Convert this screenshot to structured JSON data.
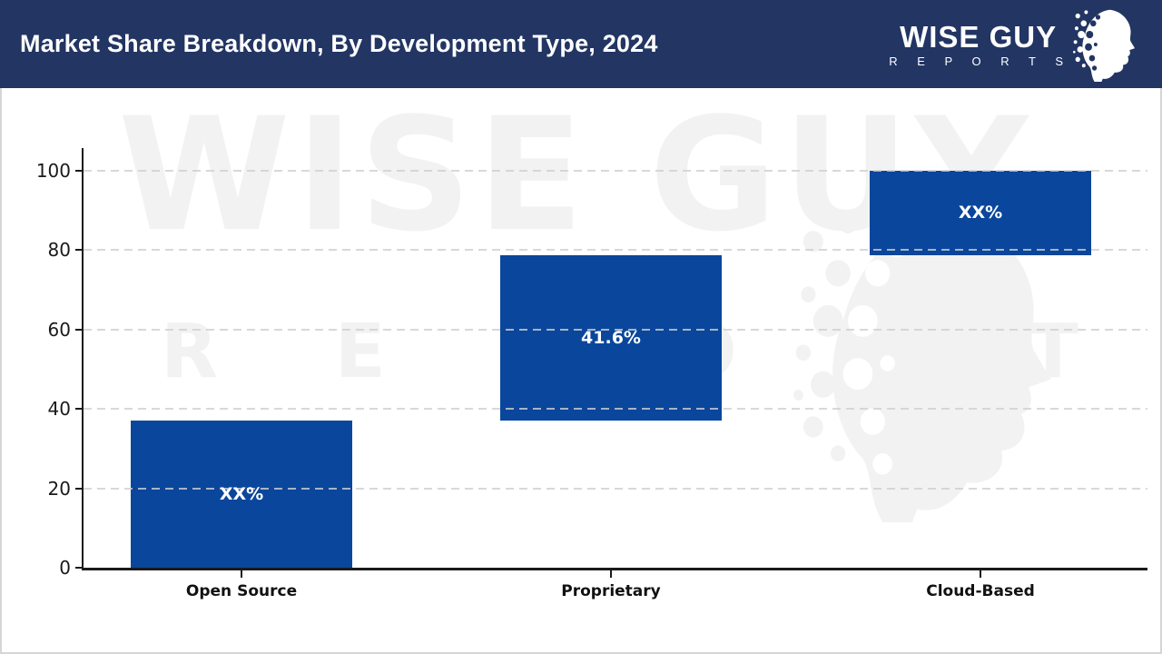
{
  "header": {
    "title": "Market Share Breakdown, By Development Type, 2024",
    "logo": {
      "line1": "WISE GUY",
      "line2": "R E P O R T S"
    }
  },
  "watermark": {
    "line1": "WISE GUY",
    "line2": "R E P O R T S"
  },
  "chart_data": {
    "type": "bar",
    "subtype": "waterfall",
    "title": "Market Share Breakdown, By Development Type, 2024",
    "categories": [
      "Open Source",
      "Proprietary",
      "Cloud-Based"
    ],
    "segments": [
      {
        "category": "Open Source",
        "start": 0,
        "end": 37,
        "label": "XX%"
      },
      {
        "category": "Proprietary",
        "start": 37,
        "end": 78.6,
        "label": "41.6%"
      },
      {
        "category": "Cloud-Based",
        "start": 78.6,
        "end": 100,
        "label": "XX%"
      }
    ],
    "ylim": [
      0,
      100
    ],
    "yticks": [
      0,
      20,
      40,
      60,
      80,
      100
    ],
    "xlabel": "",
    "ylabel": "",
    "grid": "horizontal-dashed",
    "legend": "none"
  },
  "colors": {
    "header_bg": "#223563",
    "bar": "#0a469c",
    "axis": "#1a1a1a",
    "grid": "#cfcfcf",
    "watermark": "#f2f2f2",
    "label_text": "#ffffff"
  }
}
